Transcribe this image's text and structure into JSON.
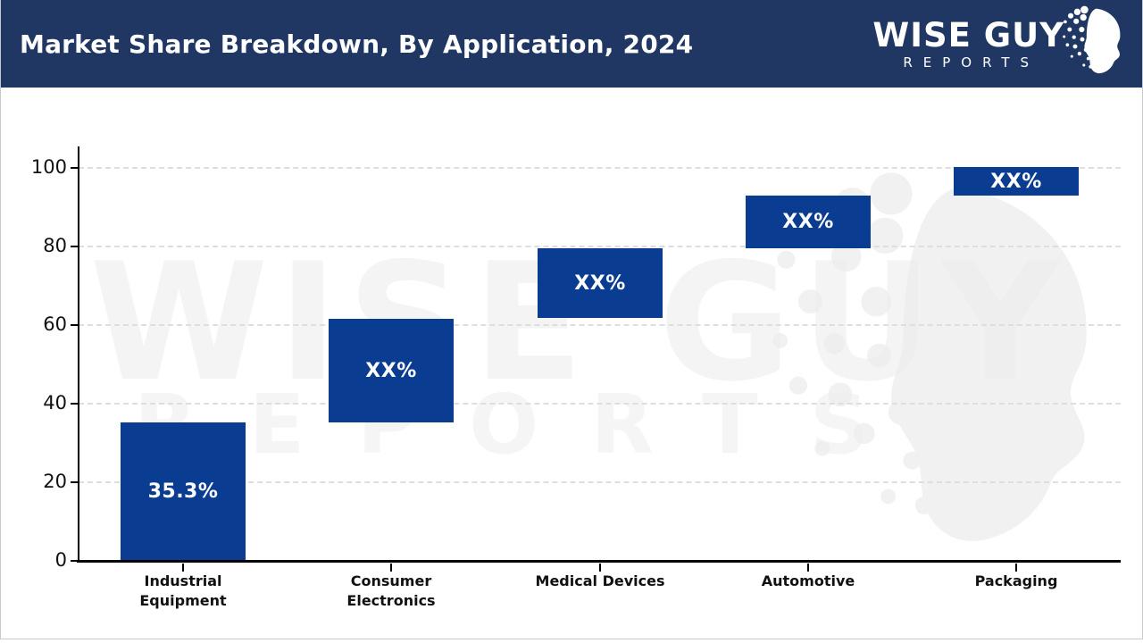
{
  "header": {
    "title": "Market Share Breakdown, By Application, 2024",
    "background_color": "#203763",
    "logo": {
      "title": "WISE GUY",
      "subtitle": "REPORTS"
    }
  },
  "watermark": {
    "line1": "WISE GUY",
    "line2": "REPORTS"
  },
  "chart_data": {
    "type": "bar",
    "subtype": "waterfall",
    "title": "Market Share Breakdown, By Application, 2024",
    "categories": [
      "Industrial\nEquipment",
      "Consumer\nElectronics",
      "Medical Devices",
      "Automotive",
      "Packaging"
    ],
    "segments": [
      {
        "category": "Industrial Equipment",
        "start": 0,
        "end": 35.3,
        "label": "35.3%"
      },
      {
        "category": "Consumer Electronics",
        "start": 35.3,
        "end": 61.7,
        "label": "XX%"
      },
      {
        "category": "Medical Devices",
        "start": 61.7,
        "end": 79.5,
        "label": "XX%"
      },
      {
        "category": "Automotive",
        "start": 79.5,
        "end": 92.9,
        "label": "XX%"
      },
      {
        "category": "Packaging",
        "start": 92.9,
        "end": 100.2,
        "label": "XX%"
      }
    ],
    "yticks": [
      0,
      20,
      40,
      60,
      80,
      100
    ],
    "ylim": [
      0,
      105
    ],
    "xlabel": "",
    "ylabel": "",
    "grid": "horizontal-dashed",
    "legend": "none",
    "bar_color": "#0a3d91",
    "bar_label_color": "#ffffff",
    "axis_color": "#000000",
    "gridline_color": "#dedede"
  }
}
